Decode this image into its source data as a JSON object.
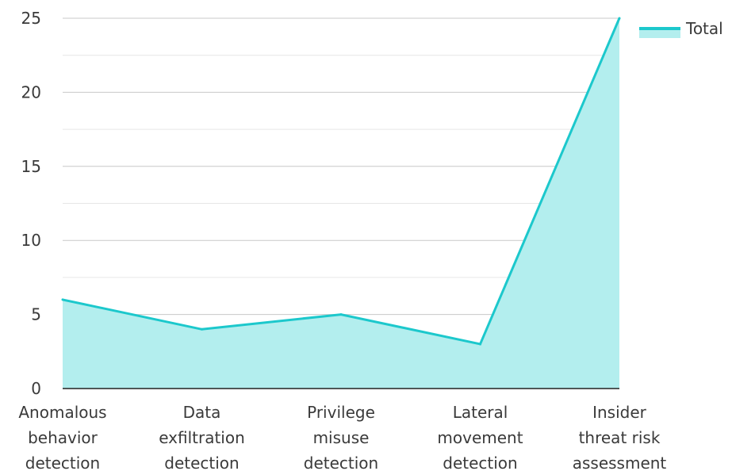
{
  "chart_data": {
    "type": "area",
    "title": "",
    "xlabel": "",
    "ylabel": "",
    "categories": [
      [
        "Anomalous",
        "behavior",
        "detection"
      ],
      [
        "Data",
        "exfiltration",
        "detection"
      ],
      [
        "Privilege",
        "misuse",
        "detection"
      ],
      [
        "Lateral",
        "movement",
        "detection"
      ],
      [
        "Insider",
        "threat risk",
        "assessment"
      ]
    ],
    "series": [
      {
        "name": "Total",
        "values": [
          6,
          4,
          5,
          3,
          25
        ]
      }
    ],
    "ylim": [
      0,
      25
    ],
    "yticks": [
      0,
      5,
      10,
      15,
      20,
      25
    ],
    "grid": true,
    "legend_position": "top-right",
    "colors": {
      "line": "#1cc8cc",
      "fill": "#b3eeee",
      "grid": "#c8c8c8",
      "minor_grid": "#e6e6e6",
      "axis": "#222222"
    }
  }
}
